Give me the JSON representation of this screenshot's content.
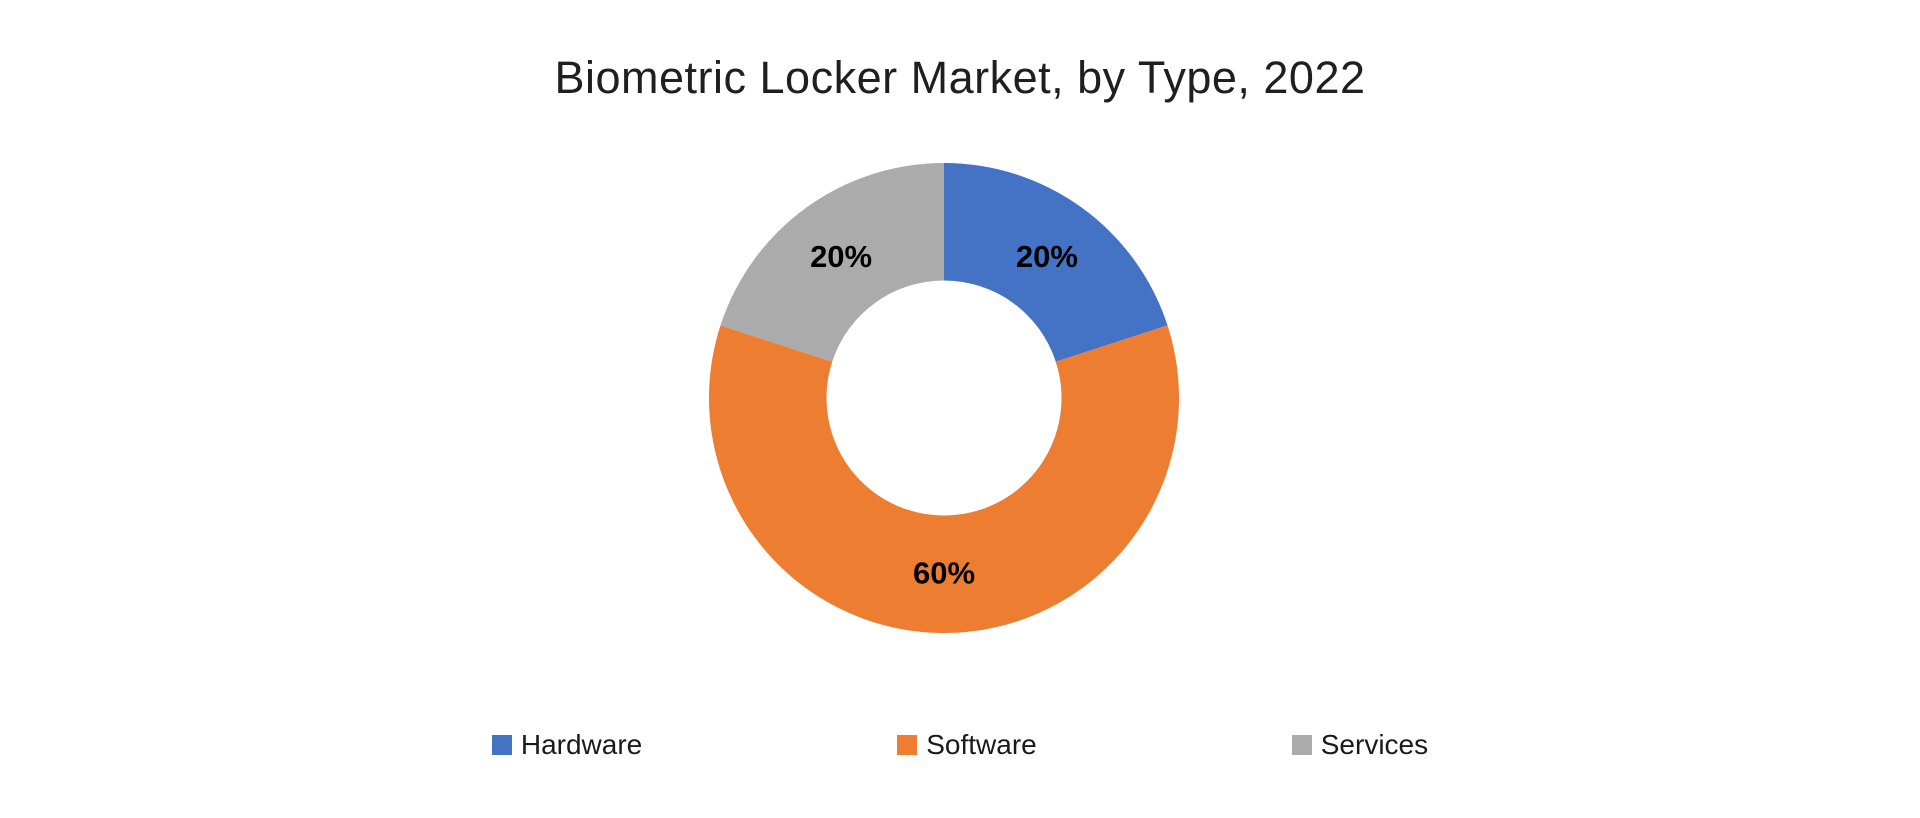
{
  "page": {
    "background_color": "#FFFFFF"
  },
  "chart_data": {
    "type": "pie",
    "subtype": "donut",
    "title": "Biometric Locker Market, by Type, 2022",
    "categories": [
      "Hardware",
      "Software",
      "Services"
    ],
    "values": [
      20,
      60,
      20
    ],
    "unit": "%",
    "data_labels": [
      "20%",
      "60%",
      "20%"
    ],
    "colors": [
      "#4472C4",
      "#ED7D31",
      "#ABABAB"
    ],
    "start_angle_deg": 0,
    "direction": "clockwise",
    "inner_radius_ratio": 0.5,
    "label_radius_ratio": 0.745,
    "grid": "off",
    "legend_position": "bottom",
    "legend": [
      {
        "label": "Hardware",
        "color": "#4472C4"
      },
      {
        "label": "Software",
        "color": "#ED7D31"
      },
      {
        "label": "Services",
        "color": "#ABABAB"
      }
    ],
    "data_label_color": "#000000",
    "title_color": "#1F1F1F"
  }
}
